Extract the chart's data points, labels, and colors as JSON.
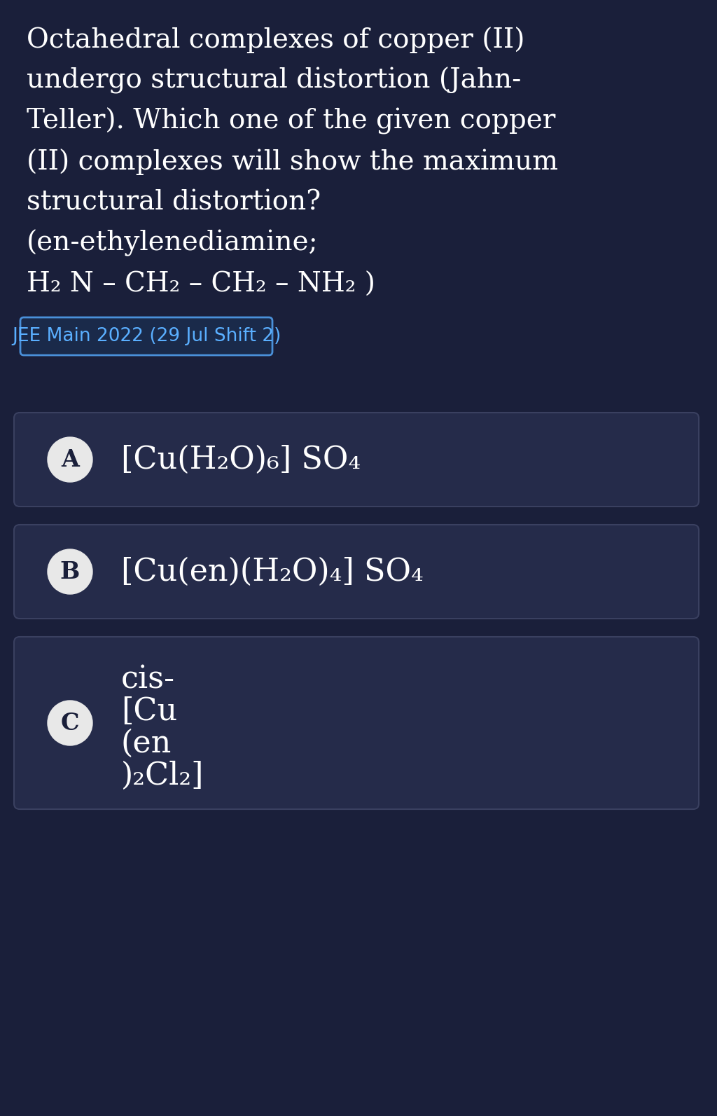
{
  "bg_color": "#1a1f3a",
  "text_color": "#ffffff",
  "question_lines": [
    "Octahedral complexes of copper (II)",
    "undergo structural distortion (Jahn-",
    "Teller). Which one of the given copper",
    "(II) complexes will show the maximum",
    "structural distortion?",
    "(en-ethylenediamine;"
  ],
  "formula_line": "H₂ N – CH₂ – CH₂ – NH₂ )",
  "badge_text": "JEE Main 2022 (29 Jul Shift 2)",
  "badge_bg": "#1a2a4a",
  "badge_border": "#4a90d9",
  "badge_text_color": "#5aafff",
  "options": [
    {
      "label": "A",
      "display": "[Cu(H₂O)₆] SO₄",
      "multiline": false
    },
    {
      "label": "B",
      "display": "[Cu(en)(H₂O)₄] SO₄",
      "multiline": false
    },
    {
      "label": "C",
      "multiline": true,
      "lines": [
        "cis-",
        "[Cu",
        "(en",
        ")₂Cl₂]"
      ]
    }
  ],
  "option_bg": "#252b4a",
  "option_border": "#3a4060",
  "circle_bg": "#e8e8e8",
  "circle_text_color": "#1a1f3a",
  "question_fontsize": 28,
  "formula_fontsize": 28,
  "option_fontsize": 32,
  "badge_fontsize": 19,
  "circle_fontsize": 24
}
